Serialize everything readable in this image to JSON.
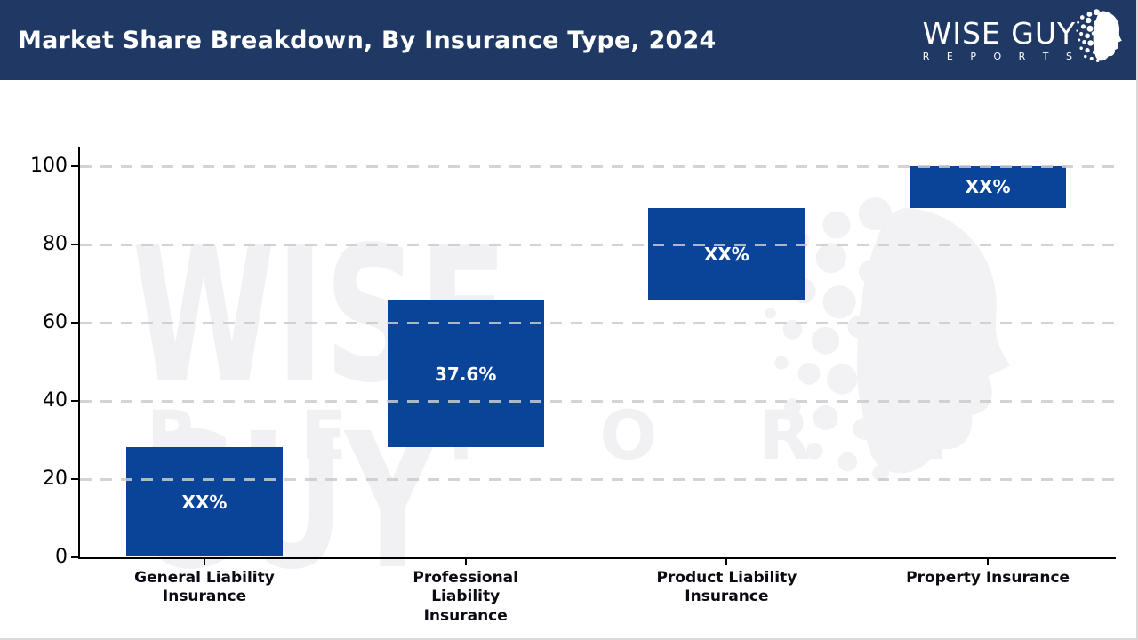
{
  "header": {
    "title": "Market Share Breakdown, By Insurance Type, 2024",
    "bg_color": "#1f3864"
  },
  "logo": {
    "brand": "WISE GUY",
    "sub": "R E P O R T S",
    "head_icon": "dotted-head-profile"
  },
  "watermark": {
    "line1": "WISE GUY",
    "line2": "R E P O R T S",
    "head_icon": "dotted-head-profile"
  },
  "colors": {
    "header_bg": "#1f3864",
    "bar": "#0a4499",
    "bar_label": "#ffffff",
    "grid": "#cbcbce",
    "axis": "#000000",
    "watermark": "#f1f1f4"
  },
  "chart_data": {
    "type": "bar",
    "subtype": "stepped-waterfall",
    "title": "Market Share Breakdown, By Insurance Type, 2024",
    "categories": [
      "General Liability\nInsurance",
      "Professional\nLiability\nInsurance",
      "Product Liability\nInsurance",
      "Property Insurance"
    ],
    "series": [
      {
        "name": "Market share (%)",
        "bases": [
          0,
          28,
          65.6,
          89.3
        ],
        "values": [
          28,
          37.6,
          23.7,
          10.7
        ]
      }
    ],
    "bar_labels": [
      "XX%",
      "37.6%",
      "XX%",
      "XX%"
    ],
    "xlabel": "",
    "ylabel": "",
    "ylim": [
      0,
      105
    ],
    "yticks": [
      0,
      20,
      40,
      60,
      80,
      100
    ],
    "grid": "horizontal-dashed",
    "legend": "none",
    "bar_color": "#0a4499"
  }
}
